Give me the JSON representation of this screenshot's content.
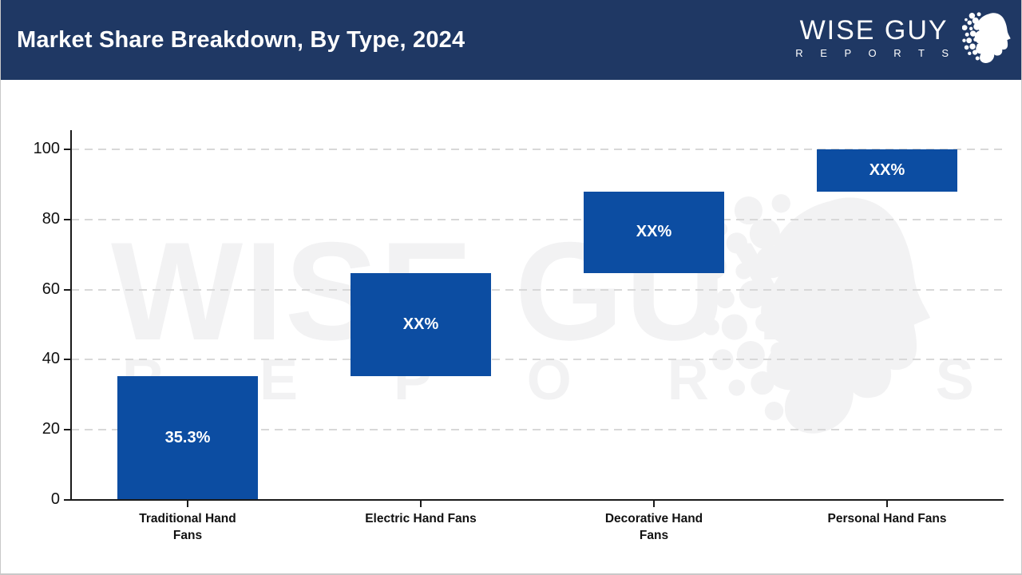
{
  "header": {
    "title": "Market Share Breakdown, By Type, 2024",
    "bg_color": "#1f3864",
    "logo": {
      "line1": "WISE GUY",
      "line2": "R E P O R T S"
    }
  },
  "watermark": {
    "line1": "WISE GUY",
    "line2": "R E P O R T S"
  },
  "chart_data": {
    "type": "bar",
    "subtype": "waterfall",
    "title": "Market Share Breakdown, By Type, 2024",
    "categories": [
      "Traditional Hand\nFans",
      "Electric Hand Fans",
      "Decorative Hand\nFans",
      "Personal Hand Fans"
    ],
    "segments": [
      {
        "category": "Traditional Hand Fans",
        "start": 0,
        "end": 35.3,
        "label": "35.3%"
      },
      {
        "category": "Electric Hand Fans",
        "start": 35.3,
        "end": 64.7,
        "label": "XX%"
      },
      {
        "category": "Decorative Hand Fans",
        "start": 64.7,
        "end": 88.0,
        "label": "XX%"
      },
      {
        "category": "Personal Hand Fans",
        "start": 88.0,
        "end": 100,
        "label": "XX%"
      }
    ],
    "y_ticks": [
      "0",
      "20",
      "40",
      "60",
      "80",
      "100"
    ],
    "y_tick_values": [
      0,
      20,
      40,
      60,
      80,
      100
    ],
    "ylim": [
      0,
      105
    ],
    "xlabel": "",
    "ylabel": "",
    "bar_color": "#0c4da2",
    "value_label_color": "#ffffff",
    "grid": "horizontal-dashed",
    "legend": "none"
  }
}
